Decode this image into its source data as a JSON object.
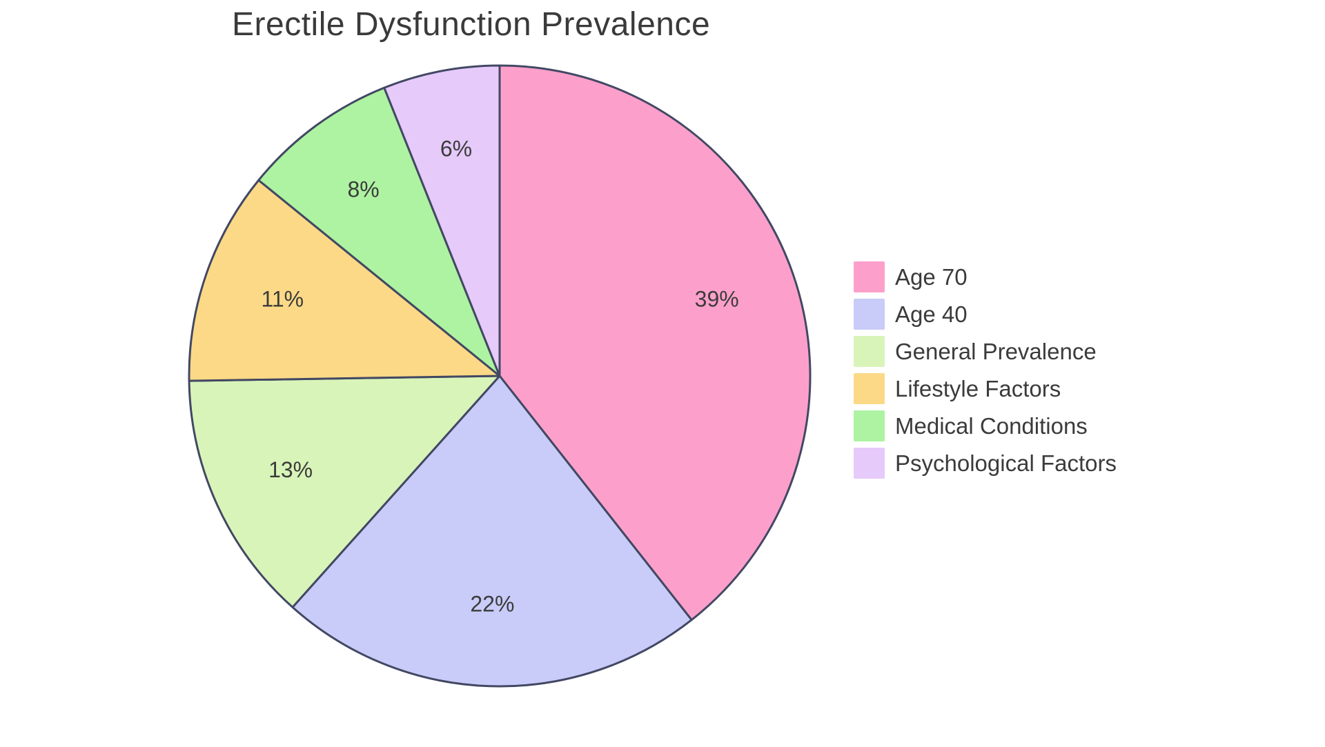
{
  "page": {
    "background_color": "#ffffff"
  },
  "chart_data": {
    "type": "pie",
    "title": "Erectile Dysfunction Prevalence",
    "categories": [
      "Age 70",
      "Age 40",
      "General Prevalence",
      "Lifestyle Factors",
      "Medical Conditions",
      "Psychological Factors"
    ],
    "values": [
      39,
      22,
      13,
      11,
      8,
      6
    ],
    "percent_labels": [
      "39%",
      "22%",
      "13%",
      "11%",
      "8%",
      "6%"
    ],
    "colors": [
      "#FCA0CB",
      "#C9CCF8",
      "#D9F4B9",
      "#FCD987",
      "#ADF3A1",
      "#E6CAFA"
    ],
    "stroke_color": "#424863",
    "stroke_width": 3,
    "label_color": "#3b3b3b",
    "label_radius_ratio": 0.74,
    "start_angle_deg": 0,
    "direction": "clockwise",
    "legend_position": "right",
    "grid": false
  }
}
